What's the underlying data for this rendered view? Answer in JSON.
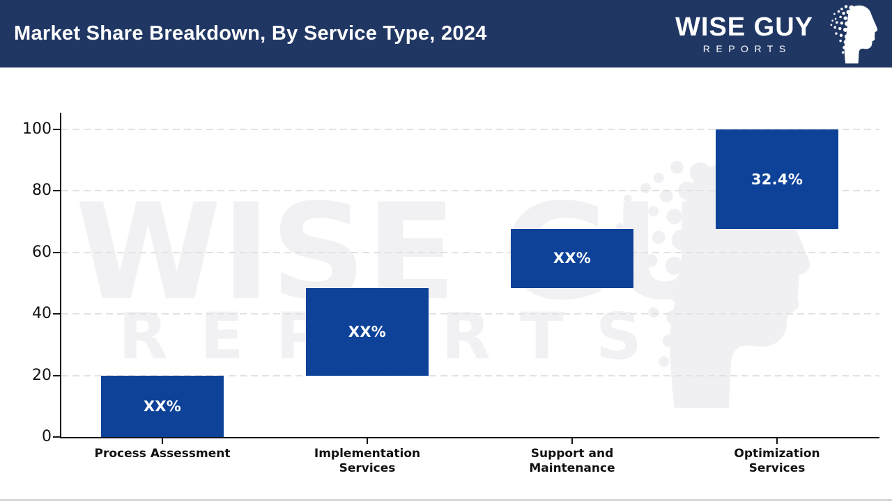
{
  "header": {
    "title": "Market Share Breakdown, By Service Type, 2024",
    "logo": {
      "line1": "WISE GUY",
      "line2": "REPORTS",
      "icon": "wise-guy-face"
    }
  },
  "watermark": {
    "line1": "WISE GUY",
    "line2": "REPORTS",
    "icon": "wise-guy-face"
  },
  "chart_data": {
    "type": "bar",
    "subtype": "waterfall",
    "title": "Market Share Breakdown, By Service Type, 2024",
    "categories": [
      "Process Assessment",
      "Implementation\nServices",
      "Support and\nMaintenance",
      "Optimization\nServices"
    ],
    "segments": [
      {
        "category": "Process Assessment",
        "start": 0,
        "end": 20,
        "label": "XX%"
      },
      {
        "category": "Implementation Services",
        "start": 20,
        "end": 48.5,
        "label": "XX%"
      },
      {
        "category": "Support and Maintenance",
        "start": 48.5,
        "end": 67.6,
        "label": "XX%"
      },
      {
        "category": "Optimization Services",
        "start": 67.6,
        "end": 100,
        "label": "32.4%"
      }
    ],
    "xlabel": "",
    "ylabel": "",
    "ylim": [
      0,
      105
    ],
    "yticks": [
      0,
      20,
      40,
      60,
      80,
      100
    ],
    "grid": "horizontal-dashed",
    "legend": "none",
    "colors": {
      "bar": "#0d4298",
      "bar_label": "#ffffff",
      "axis": "#151515",
      "gridline": "#e2e2e2",
      "header_bg": "#203764",
      "watermark": "#f1f1f4"
    }
  }
}
